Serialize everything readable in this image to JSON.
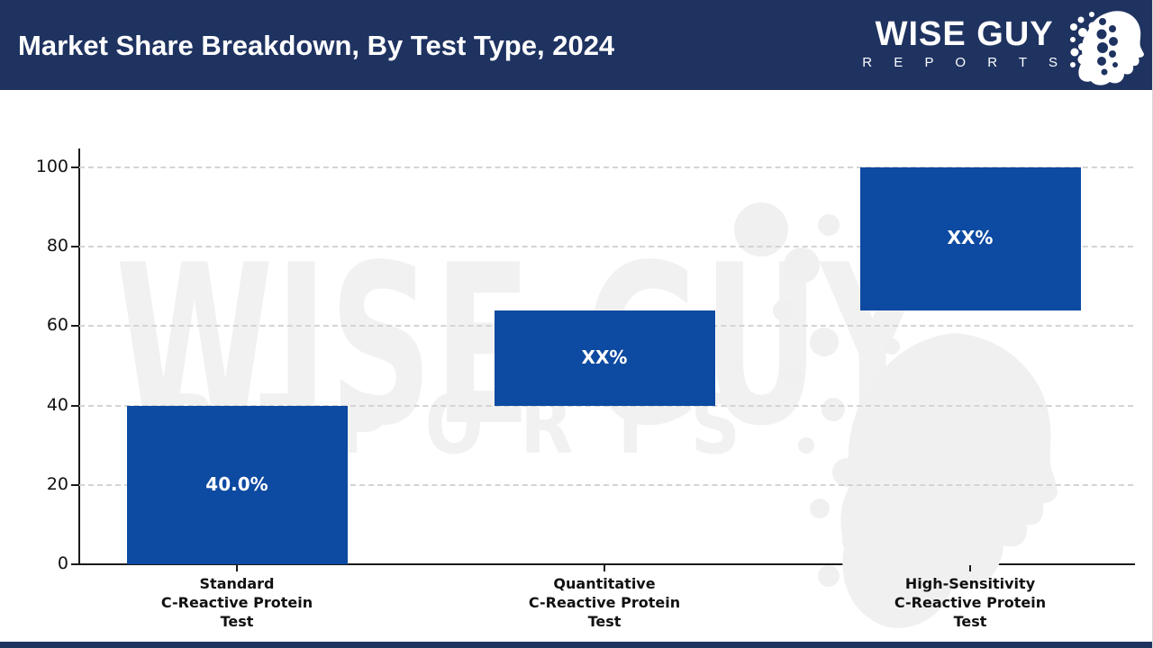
{
  "header": {
    "title": "Market Share Breakdown, By Test Type, 2024",
    "logo": {
      "wordmark": "WISE GUY",
      "subtext": "R E P O R T S"
    },
    "bg_color": "#1f3361"
  },
  "watermark": {
    "wordmark": "WISE GUY",
    "subtext": "REPORTS"
  },
  "chart_data": {
    "type": "bar",
    "subtype": "waterfall-breakdown",
    "title": "Market Share Breakdown, By Test Type, 2024",
    "categories": [
      {
        "lines": [
          "Standard",
          "C-Reactive Protein",
          "Test"
        ]
      },
      {
        "lines": [
          "Quantitative",
          "C-Reactive Protein",
          "Test"
        ]
      },
      {
        "lines": [
          "High-Sensitivity",
          "C-Reactive Protein",
          "Test"
        ]
      }
    ],
    "bars": [
      {
        "category": "Standard C-Reactive Protein Test",
        "start": 0,
        "end": 40,
        "value": 40,
        "label": "40.0%"
      },
      {
        "category": "Quantitative C-Reactive Protein Test",
        "start": 40,
        "end": 64,
        "value": 24,
        "label": "XX%"
      },
      {
        "category": "High-Sensitivity C-Reactive Protein Test",
        "start": 64,
        "end": 100,
        "value": 36,
        "label": "XX%"
      }
    ],
    "xlabel": "",
    "ylabel": "",
    "ylim": [
      0,
      100
    ],
    "yticks": [
      0,
      20,
      40,
      60,
      80,
      100
    ],
    "grid": "horizontal-dashed",
    "legend": "none",
    "bar_color": "#0d4aa1",
    "label_color": "#ffffff"
  },
  "footer": {
    "bg_color": "#1f3361"
  }
}
